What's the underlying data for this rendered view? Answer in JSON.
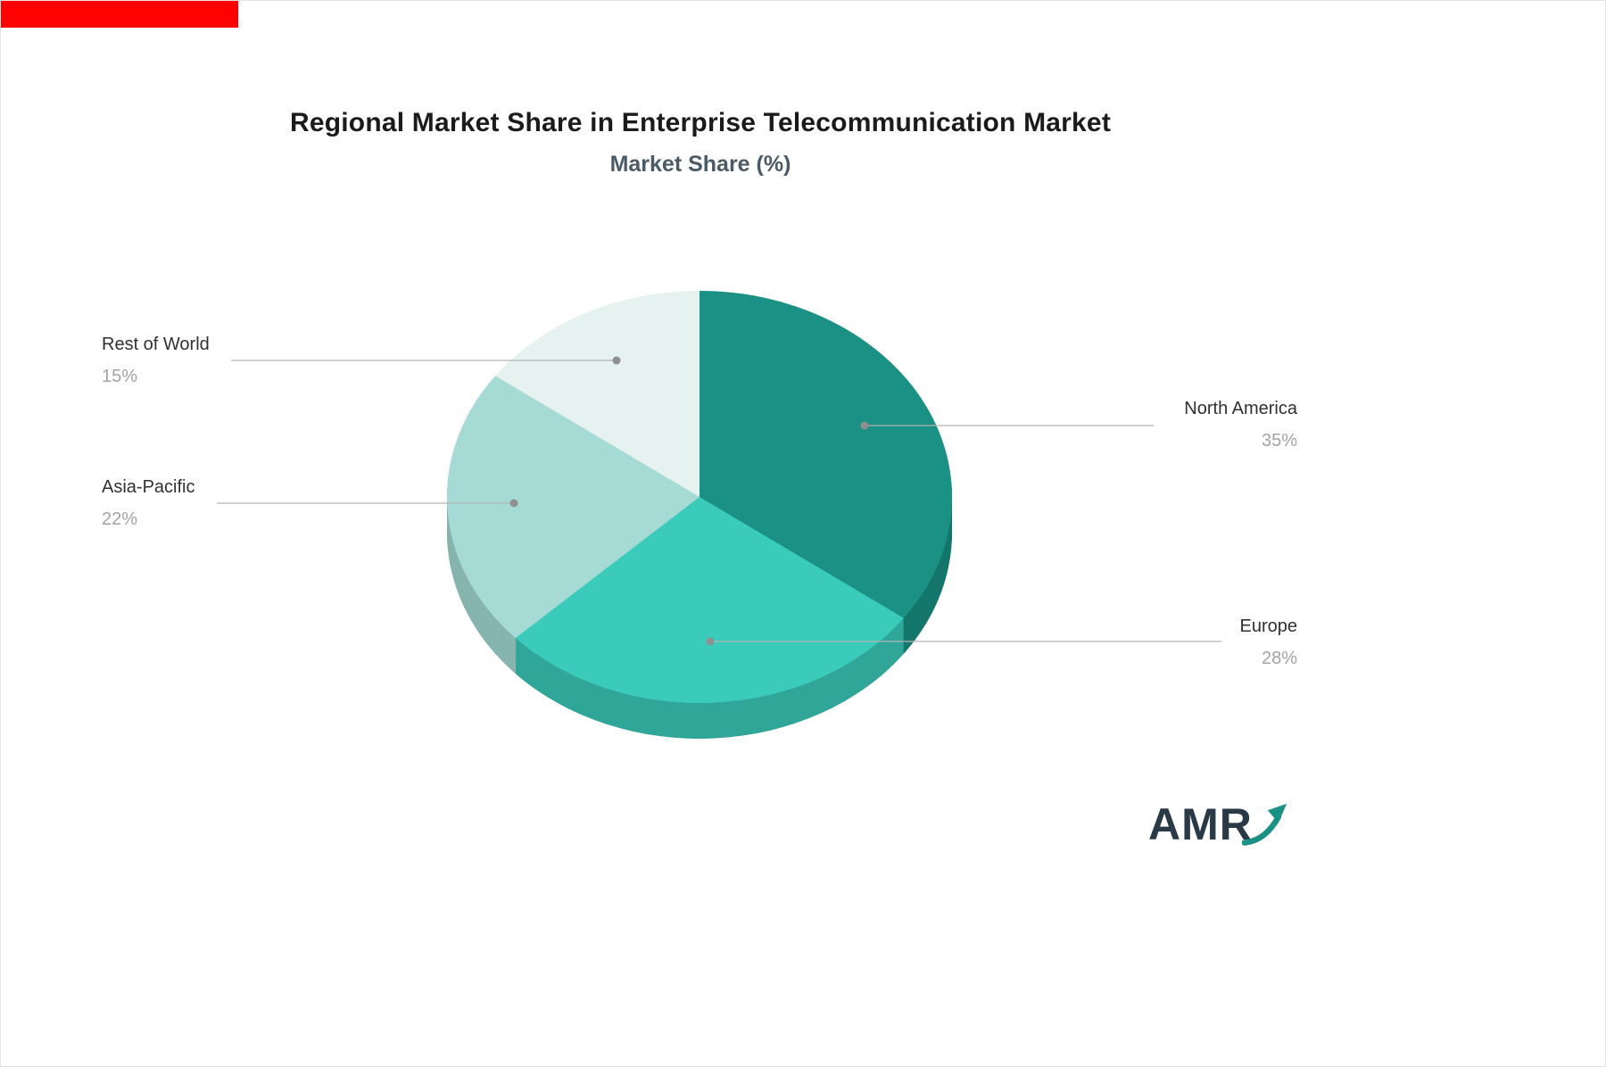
{
  "decor": {
    "top_banner_color": "#fe0101",
    "background_color": "#ffffff",
    "leader_line_color": "#b3b3b3",
    "leader_dot_color": "#8f8f8f"
  },
  "chart_data": {
    "type": "pie",
    "style": "3d",
    "title": "Regional Market Share in Enterprise Telecommunication Market",
    "subtitle": "Market Share (%)",
    "categories": [
      "North America",
      "Europe",
      "Asia-Pacific",
      "Rest of World"
    ],
    "values": [
      35,
      28,
      22,
      15
    ],
    "unit": "%",
    "colors": [
      "#1a9184",
      "#3bcbbb",
      "#a5dbd4",
      "#e6f2f0"
    ],
    "start_angle_deg": 0,
    "direction": "clockwise",
    "legend_position": "none",
    "callouts": [
      {
        "name": "North America",
        "value": "35%",
        "side": "right"
      },
      {
        "name": "Europe",
        "value": "28%",
        "side": "right"
      },
      {
        "name": "Asia-Pacific",
        "value": "22%",
        "side": "left"
      },
      {
        "name": "Rest of World",
        "value": "15%",
        "side": "left"
      }
    ]
  },
  "logo": {
    "text": "AMR",
    "text_color": "#2a3946",
    "arrow_color": "#1a9184"
  }
}
